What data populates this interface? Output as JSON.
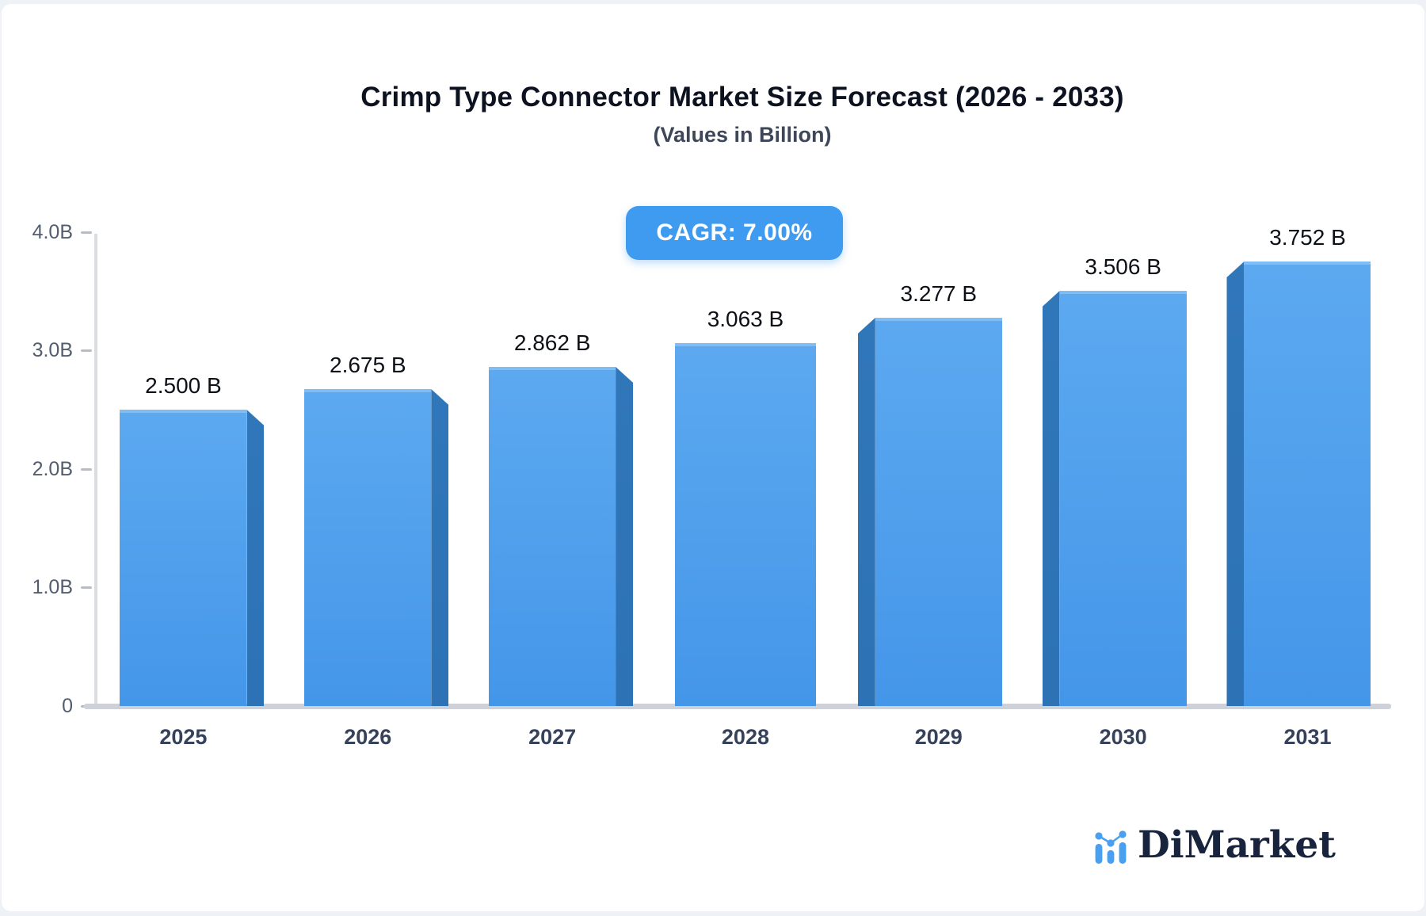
{
  "header": {
    "title": "Crimp Type Connector Market Size Forecast (2026 - 2033)",
    "subtitle": "(Values in Billion)"
  },
  "badge": {
    "label": "CAGR: 7.00%",
    "background": "#3e9bf0",
    "text_color": "#ffffff"
  },
  "chart_data": {
    "type": "bar",
    "title": "Crimp Type Connector Market Size Forecast (2026 - 2033)",
    "subtitle": "(Values in Billion)",
    "categories": [
      "2025",
      "2026",
      "2027",
      "2028",
      "2029",
      "2030",
      "2031"
    ],
    "values": [
      2.5,
      2.675,
      2.862,
      3.063,
      3.277,
      3.506,
      3.752
    ],
    "value_labels": [
      "2.500 B",
      "2.675 B",
      "2.862 B",
      "3.063 B",
      "3.277 B",
      "3.506 B",
      "3.752 B"
    ],
    "unit": "Billion",
    "ylim": [
      0,
      4.0
    ],
    "yticks": [
      {
        "value": 4.0,
        "label": "4.0B"
      },
      {
        "value": 3.0,
        "label": "3.0B"
      },
      {
        "value": 2.0,
        "label": "2.0B"
      },
      {
        "value": 1.0,
        "label": "1.0B"
      },
      {
        "value": 0,
        "label": "0"
      }
    ],
    "grid": false,
    "legend": null,
    "bar_color_top": "#5ca9f0",
    "bar_color_bottom": "#4496e9",
    "bar_side_color": "#2e74b7",
    "bar_top_edge_color": "#7fbdf4"
  },
  "logo": {
    "text": "DiMarket",
    "icon": "bar-chart-logo-icon",
    "icon_color": "#4aa0f0",
    "text_color": "#18233d"
  }
}
